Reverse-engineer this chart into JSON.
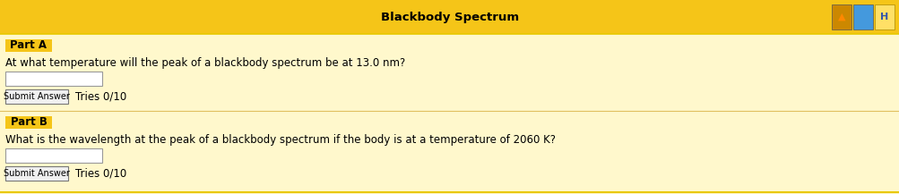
{
  "title": "Blackbody Spectrum",
  "title_bg_color": "#F5C518",
  "main_bg_color": "#FFF8CC",
  "border_color": "#E8C800",
  "part_a_label": "Part A",
  "part_a_bg": "#F5C518",
  "part_a_question": "At what temperature will the peak of a blackbody spectrum be at 13.0 nm?",
  "part_b_label": "Part B",
  "part_b_bg": "#F5C518",
  "part_b_question": "What is the wavelength at the peak of a blackbody spectrum if the body is at a temperature of 2060 K?",
  "submit_label": "Submit Answer",
  "tries_label": "Tries 0/10",
  "title_fontsize": 9.5,
  "body_fontsize": 8.5,
  "part_label_fontsize": 8.5,
  "submit_fontsize": 7.0,
  "input_box_color": "#FFFFFF",
  "input_box_border": "#999999",
  "submit_btn_color": "#F0F0F0",
  "submit_btn_border": "#777777",
  "fig_width": 10.04,
  "fig_height": 2.17,
  "dpi": 100
}
